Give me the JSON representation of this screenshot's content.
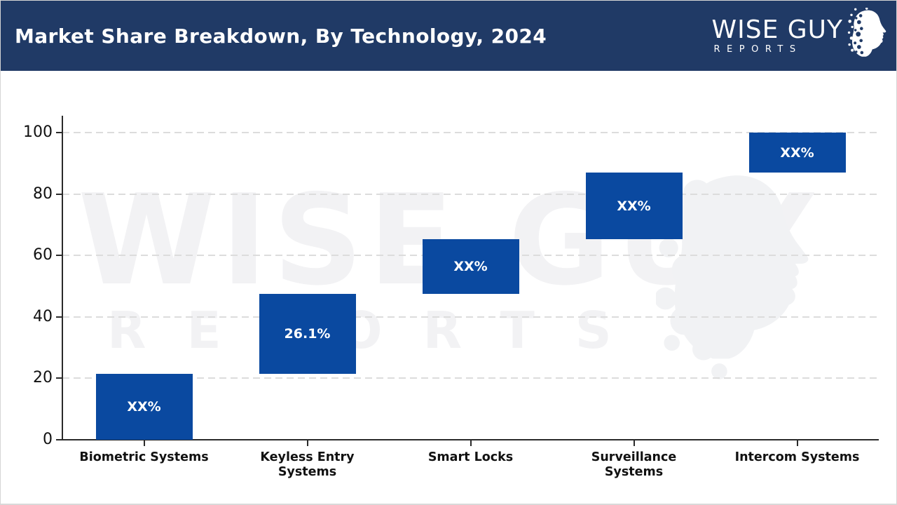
{
  "header": {
    "title": "Market Share Breakdown, By Technology, 2024",
    "brand": {
      "name": "WISE GUY",
      "subtitle": "REPORTS"
    }
  },
  "watermark": {
    "line1": "WISE GUY",
    "line2": "REPORTS"
  },
  "colors": {
    "header_background": "#203A66",
    "bar_blue": "#0A49A0",
    "axis": "#2a2a2a",
    "gridline": "#dcdcdc",
    "bar_label": "#ffffff"
  },
  "chart_data": {
    "type": "bar",
    "subtype": "floating-waterfall",
    "title": "Market Share Breakdown, By Technology, 2024",
    "categories": [
      "Biometric Systems",
      "Keyless Entry\nSystems",
      "Smart Locks",
      "Surveillance\nSystems",
      "Intercom Systems"
    ],
    "bars": [
      {
        "category": "Biometric Systems",
        "label": "XX%",
        "start": 0,
        "end": 21.5
      },
      {
        "category": "Keyless Entry Systems",
        "label": "26.1%",
        "start": 21.5,
        "end": 47.6
      },
      {
        "category": "Smart Locks",
        "label": "XX%",
        "start": 47.6,
        "end": 65.3
      },
      {
        "category": "Surveillance Systems",
        "label": "XX%",
        "start": 65.3,
        "end": 86.9
      },
      {
        "category": "Intercom Systems",
        "label": "XX%",
        "start": 86.9,
        "end": 100
      }
    ],
    "values_shown_on_bars": [
      "XX%",
      "26.1%",
      "XX%",
      "XX%",
      "XX%"
    ],
    "yticks": [
      0,
      20,
      40,
      60,
      80,
      100
    ],
    "ylim": [
      0,
      105.5
    ],
    "xlabel": "",
    "ylabel": "",
    "grid": "horizontal dashed",
    "legend": "none",
    "bar_color": "#0A49A0",
    "label_color": "#ffffff"
  }
}
